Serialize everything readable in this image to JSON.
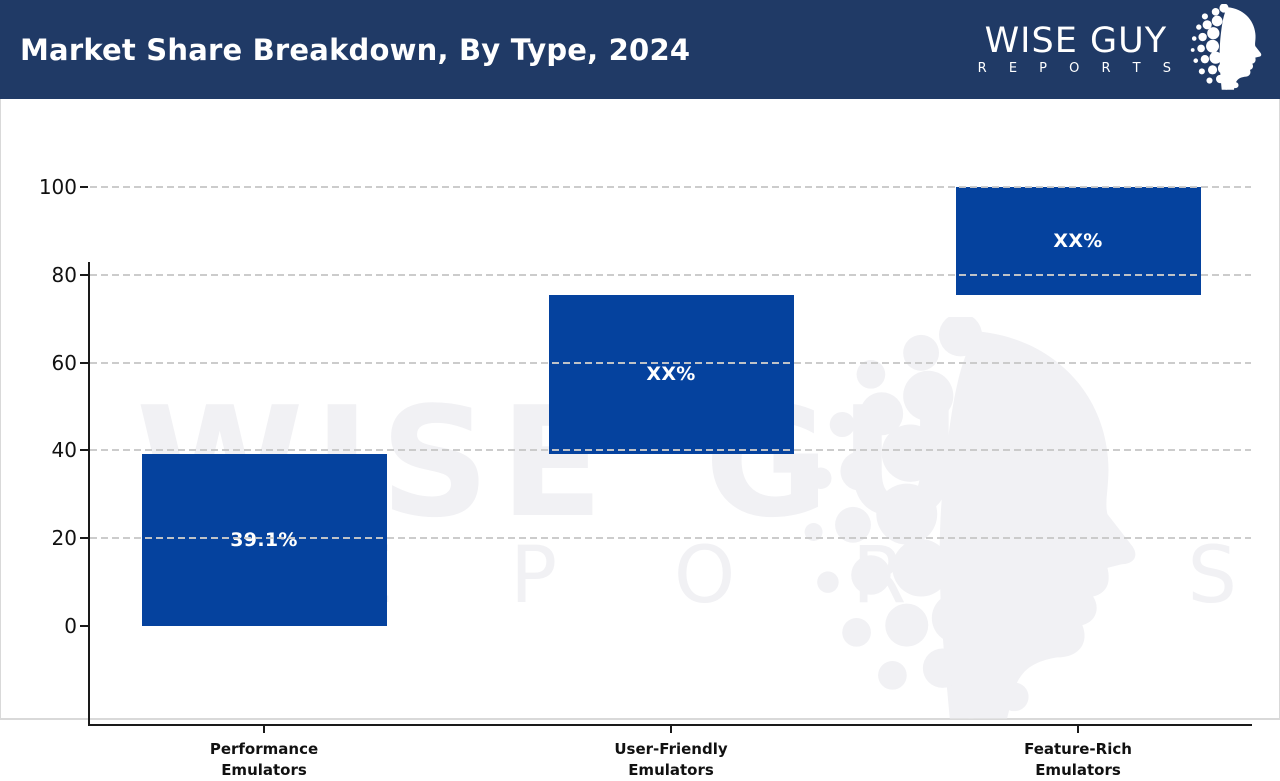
{
  "header": {
    "title": "Market Share Breakdown, By Type, 2024",
    "logo": {
      "line1": "WISE GUY",
      "line2": "R E P O R T S"
    }
  },
  "watermark": {
    "line1": "WISE GUY",
    "line2": "R E P O R T S"
  },
  "colors": {
    "header_bg": "#203a66",
    "bar_blue": "#05429e",
    "grid_gray": "#c9c9c9",
    "axis_black": "#1a1a1a",
    "watermark_gray": "#f1f1f4",
    "bar_label_white": "#ffffff"
  },
  "chart_data": {
    "type": "bar",
    "variant": "floating-segment-percent",
    "title": "Market Share Breakdown, By Type, 2024",
    "categories": [
      "Performance\nEmulators",
      "User-Friendly\nEmulators",
      "Feature-Rich\nEmulators"
    ],
    "segments": [
      {
        "category": "Performance Emulators",
        "start": 0,
        "end": 39.1,
        "label": "39.1%"
      },
      {
        "category": "User-Friendly Emulators",
        "start": 39.1,
        "end": 75.5,
        "label": "XX%"
      },
      {
        "category": "Feature-Rich Emulators",
        "start": 75.5,
        "end": 100,
        "label": "XX%"
      }
    ],
    "ylim": [
      0,
      100
    ],
    "yticks": [
      0,
      20,
      40,
      60,
      80,
      100
    ],
    "xlabel": "",
    "ylabel": "",
    "grid": "horizontal-dashed",
    "legend": "none"
  }
}
